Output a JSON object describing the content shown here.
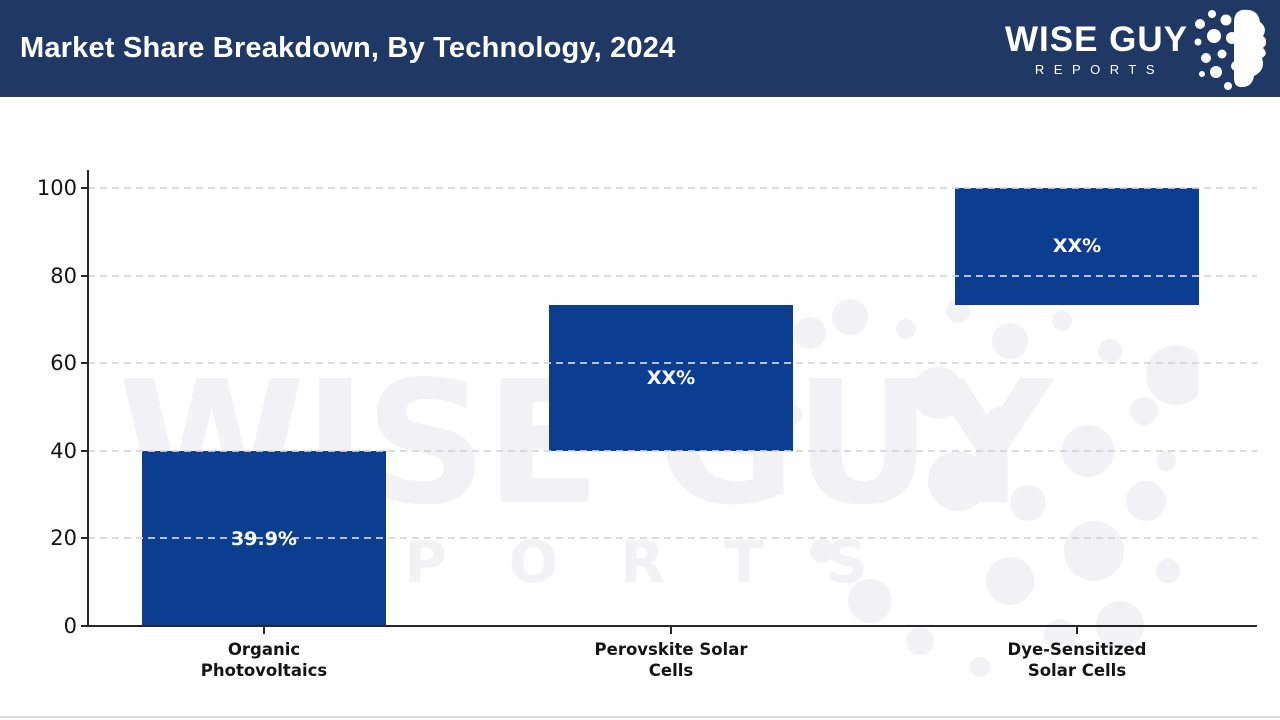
{
  "header": {
    "title": "Market Share Breakdown, By Technology, 2024",
    "brand": {
      "line1": "WISE GUY",
      "line2": "REPORTS"
    }
  },
  "watermark": {
    "line1": "WISE GUY",
    "line2": "REPORTS"
  },
  "chart_data": {
    "type": "bar",
    "subtype": "waterfall-stacked-breakdown",
    "title": "Market Share Breakdown, By Technology, 2024",
    "categories": [
      "Organic Photovoltaics",
      "Perovskite Solar Cells",
      "Dye-Sensitized Solar Cells"
    ],
    "segments": [
      {
        "label_lines": [
          "Organic",
          "Photovoltaics"
        ],
        "start": 0,
        "end": 39.9,
        "value_label": "39.9%"
      },
      {
        "label_lines": [
          "Perovskite Solar",
          "Cells"
        ],
        "start": 39.9,
        "end": 73.3,
        "value_label": "XX%"
      },
      {
        "label_lines": [
          "Dye-Sensitized",
          "Solar Cells"
        ],
        "start": 73.3,
        "end": 100,
        "value_label": "XX%"
      }
    ],
    "yticks": [
      0,
      20,
      40,
      60,
      80,
      100
    ],
    "ylim": [
      0,
      104
    ],
    "xlabel": "",
    "ylabel": "",
    "grid": true,
    "legend": false
  },
  "colors": {
    "header_bg": "#1f3864",
    "bar": "#0b3e91",
    "grid": "#d6d6d6",
    "axis": "#262626",
    "watermark": "#f2f2f4"
  }
}
